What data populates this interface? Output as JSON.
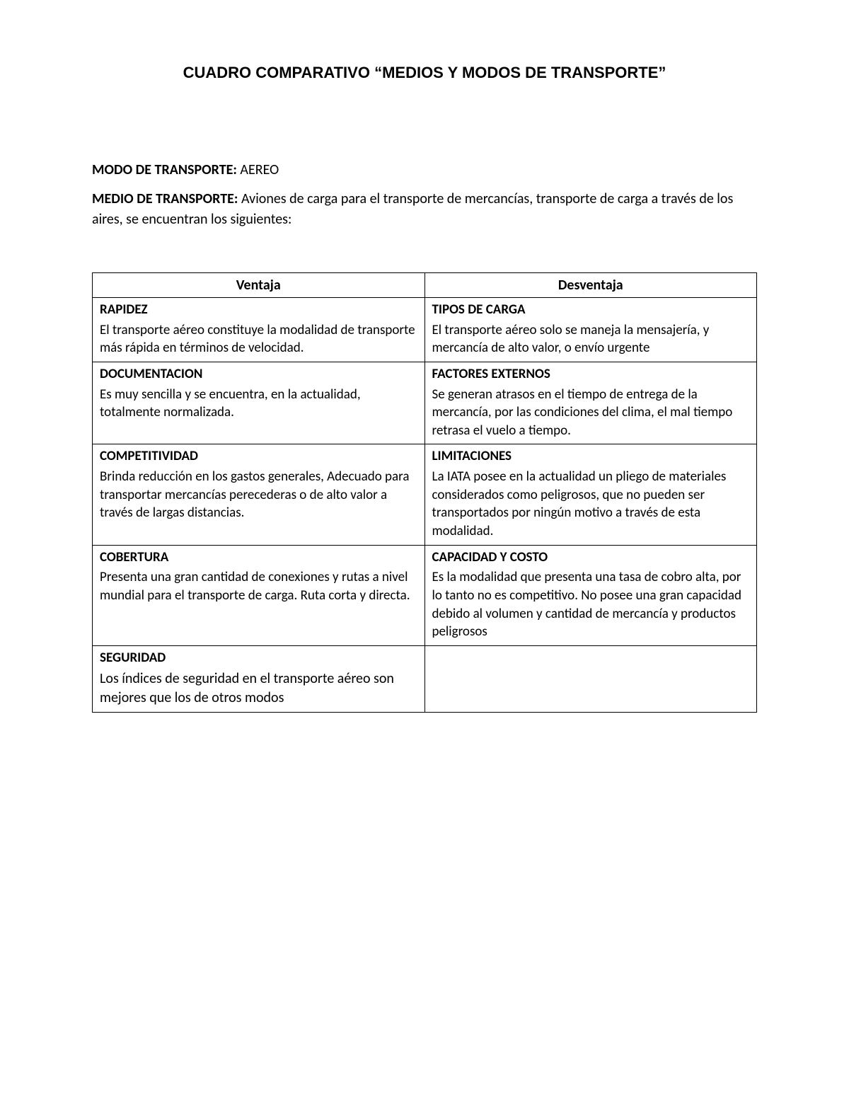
{
  "title": "CUADRO COMPARATIVO “MEDIOS Y MODOS DE TRANSPORTE”",
  "modo": {
    "label": "MODO DE TRANSPORTE:",
    "value": " AEREO"
  },
  "medio": {
    "label": "MEDIO DE TRANSPORTE:",
    "value": " Aviones de carga para el transporte de mercancías, transporte de carga a través de los aires, se encuentran los siguientes:"
  },
  "table": {
    "columns": [
      "Ventaja",
      "Desventaja"
    ],
    "border_color": "#000000",
    "background_color": "#ffffff",
    "font_family": "Calibri",
    "header_fontsize": 20,
    "cell_fontsize": 19,
    "rows": [
      {
        "ventaja": {
          "title": "RAPIDEZ",
          "body": "El transporte aéreo constituye la modalidad de transporte más rápida en términos de velocidad."
        },
        "desventaja": {
          "title": "TIPOS DE CARGA",
          "body": "El transporte aéreo solo se maneja la mensajería, y mercancía de alto valor, o envío urgente"
        }
      },
      {
        "ventaja": {
          "title": "DOCUMENTACION",
          "body": "Es muy sencilla y se encuentra, en la actualidad, totalmente normalizada."
        },
        "desventaja": {
          "title": "FACTORES EXTERNOS",
          "body": "Se generan atrasos en el tiempo de entrega de la mercancía, por las condiciones del clima, el mal tiempo retrasa el vuelo a tiempo."
        }
      },
      {
        "ventaja": {
          "title": "COMPETITIVIDAD",
          "body": "Brinda reducción en los gastos generales, Adecuado para transportar mercancías perecederas o de alto valor a través de largas distancias."
        },
        "desventaja": {
          "title": "LIMITACIONES",
          "body": "La IATA posee en la actualidad un pliego de materiales  considerados como peligrosos, que no pueden ser transportados por ningún motivo a través de esta modalidad."
        }
      },
      {
        "ventaja": {
          "title": "COBERTURA",
          "body": "Presenta una gran cantidad de conexiones y rutas a nivel mundial para el transporte de carga. Ruta corta y directa."
        },
        "desventaja": {
          "title": "CAPACIDAD Y COSTO",
          "body": "Es la modalidad que presenta una tasa de cobro alta, por lo tanto no es competitivo. No posee una gran capacidad debido al volumen y cantidad de mercancía y productos peligrosos"
        }
      },
      {
        "ventaja": {
          "title": "SEGURIDAD",
          "body": "Los índices de seguridad en el transporte aéreo son  mejores que los de otros modos"
        },
        "desventaja": {
          "title": "",
          "body": ""
        }
      }
    ]
  }
}
